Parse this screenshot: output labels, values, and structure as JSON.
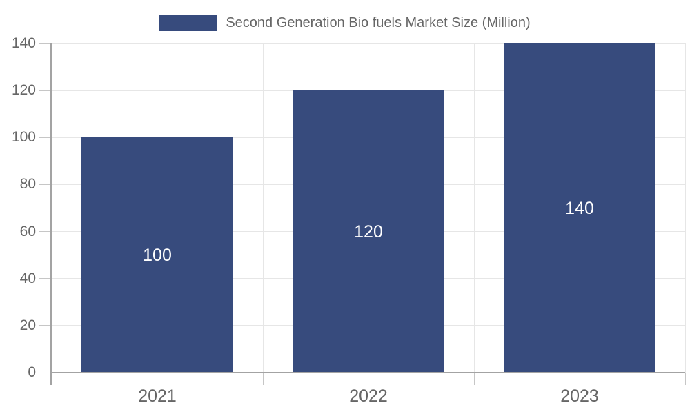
{
  "chart_data": {
    "type": "bar",
    "series_name": "Second Generation Bio fuels Market Size (Million)",
    "categories": [
      "2021",
      "2022",
      "2023"
    ],
    "values": [
      100,
      120,
      140
    ],
    "xlabel": "",
    "ylabel": "",
    "ylim": [
      0,
      140
    ],
    "yticks": [
      0,
      20,
      40,
      60,
      80,
      100,
      120,
      140
    ],
    "grid": true,
    "legend_position": "top-center",
    "colors": {
      "bar": "#374B7D",
      "axis_line": "#A3A3A3",
      "gridline": "#E6E6E6",
      "tick": "#C6C6C6",
      "axis_label": "#666666",
      "legend_text": "#666666",
      "value_label": "#FFFFFF",
      "background": "#FFFFFF"
    }
  }
}
